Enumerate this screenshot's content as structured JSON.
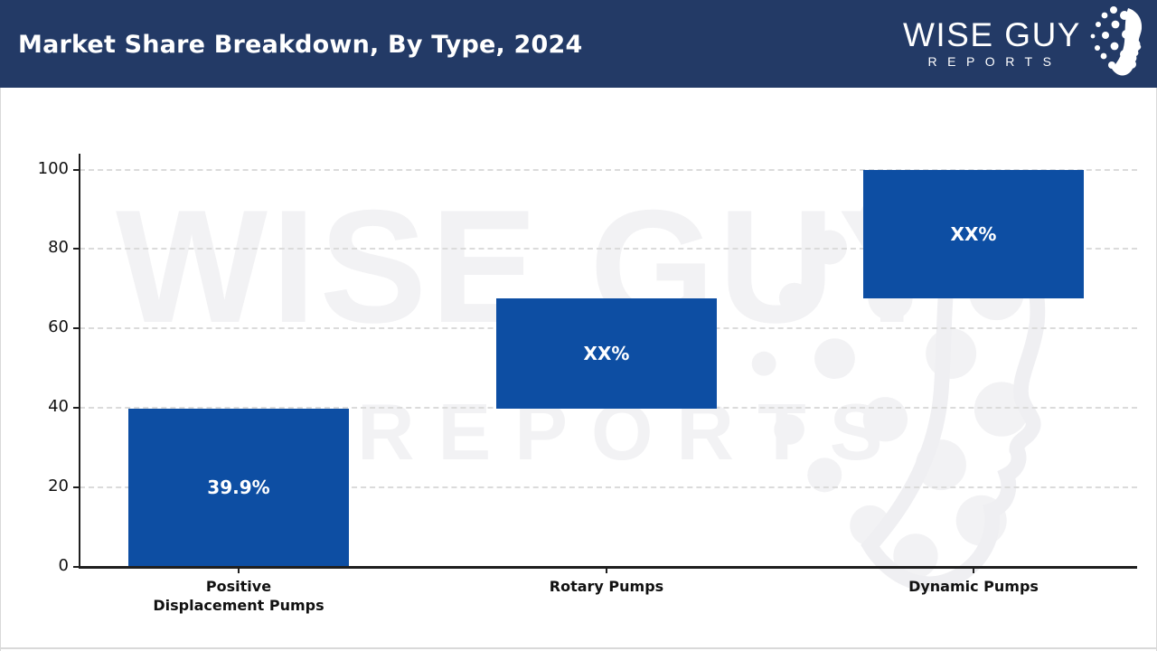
{
  "header": {
    "title": "Market Share Breakdown, By Type, 2024",
    "logo": {
      "line1": "WISE GUY",
      "line2": "REPORTS"
    }
  },
  "watermark": {
    "line1": "WISE GUY",
    "line2": "REPORTS"
  },
  "colors": {
    "header_bg": "#233A66",
    "bar": "#0D4EA3",
    "grid": "#DBDBDB",
    "axis": "#1F1F1F",
    "watermark": "#F2F2F4",
    "label_on_bar": "#FFFFFF"
  },
  "chart_data": {
    "type": "bar",
    "subtype": "waterfall",
    "title": "Market Share Breakdown, By Type, 2024",
    "categories": [
      "Positive\nDisplacement Pumps",
      "Rotary Pumps",
      "Dynamic Pumps"
    ],
    "series": [
      {
        "name": "Market Share",
        "segments": [
          {
            "category": "Positive Displacement Pumps",
            "start": 0,
            "end": 39.9,
            "label": "39.9%"
          },
          {
            "category": "Rotary Pumps",
            "start": 39.9,
            "end": 67.6,
            "label": "XX%"
          },
          {
            "category": "Dynamic Pumps",
            "start": 67.6,
            "end": 100,
            "label": "XX%"
          }
        ]
      }
    ],
    "xlabel": "",
    "ylabel": "",
    "yticks": [
      0,
      20,
      40,
      60,
      80,
      100
    ],
    "ylim": [
      0,
      104
    ],
    "grid": "horizontal-dashed",
    "legend": "none",
    "unit": "%"
  }
}
